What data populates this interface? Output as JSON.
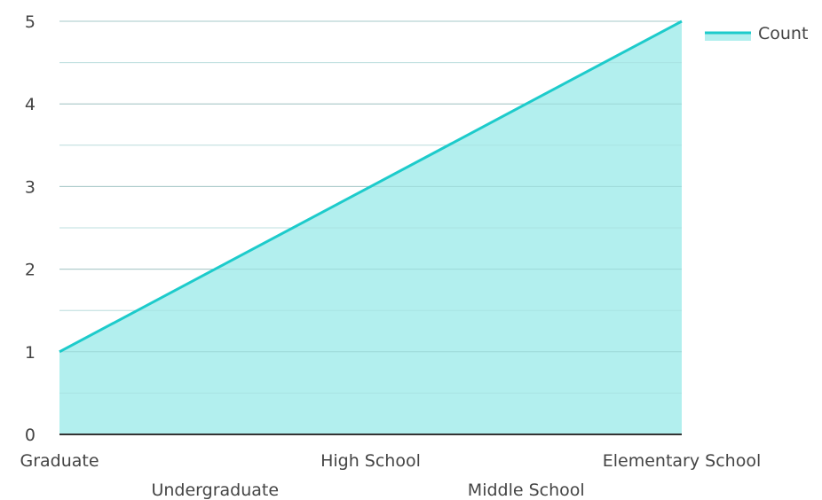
{
  "chart_data": {
    "type": "area",
    "categories": [
      "Graduate",
      "Undergraduate",
      "High School",
      "Middle School",
      "Elementary School"
    ],
    "series": [
      {
        "name": "Count",
        "values": [
          1,
          2,
          3,
          4,
          5
        ]
      }
    ],
    "title": "",
    "xlabel": "",
    "ylabel": "",
    "ylim": [
      0,
      5
    ],
    "yticks": [
      0,
      1,
      2,
      3,
      4,
      5
    ],
    "grid": true,
    "legend": "top-right",
    "colors": {
      "line": "#1dcbcb",
      "fill": "#b2efee",
      "grid": "#cccccc",
      "axis": "#333333"
    }
  }
}
